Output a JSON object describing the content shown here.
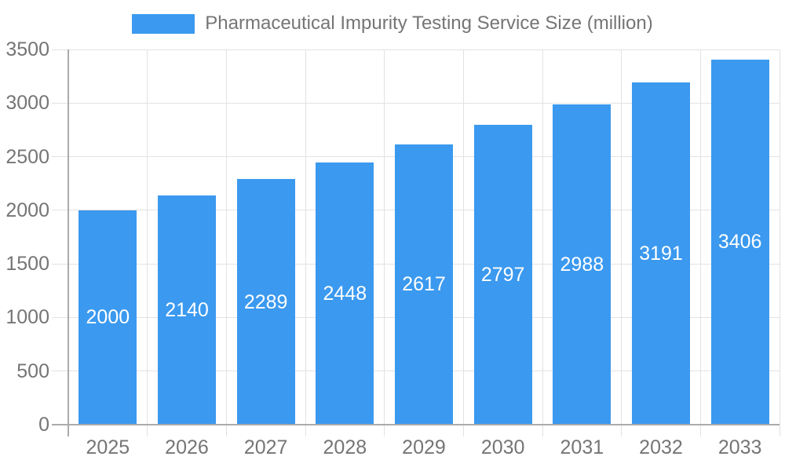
{
  "legend": {
    "label": "Pharmaceutical Impurity Testing Service Size (million)"
  },
  "chart_data": {
    "type": "bar",
    "title": "Pharmaceutical Impurity Testing Service Size (million)",
    "legend_position": "top",
    "grid": true,
    "categories": [
      "2025",
      "2026",
      "2027",
      "2028",
      "2029",
      "2030",
      "2031",
      "2032",
      "2033"
    ],
    "series": [
      {
        "name": "Pharmaceutical Impurity Testing Service Size (million)",
        "values": [
          2000,
          2140,
          2289,
          2448,
          2617,
          2797,
          2988,
          3191,
          3406
        ]
      }
    ],
    "data_labels_visible": true,
    "xlabel": "",
    "ylabel": "",
    "ylim": [
      0,
      3500
    ],
    "yticks": [
      0,
      500,
      1000,
      1500,
      2000,
      2500,
      3000,
      3500
    ],
    "colors": {
      "bar": "#3B99EF",
      "bar_label": "#FFFFFF",
      "axis_text": "#757575",
      "grid_line": "#E2E2E2",
      "axis_line": "#ABABAB"
    }
  }
}
